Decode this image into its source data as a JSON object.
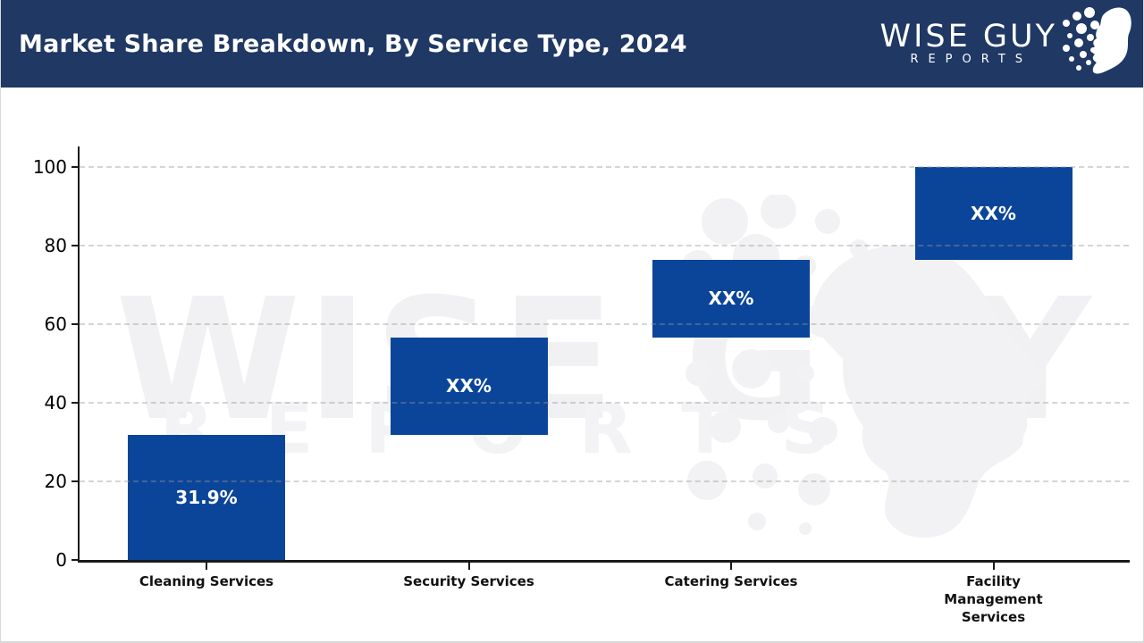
{
  "header": {
    "title": "Market Share Breakdown, By Service Type, 2024",
    "logo": {
      "line1": "WISE GUY",
      "line2": "REPORTS"
    }
  },
  "watermark": {
    "line1": "WISE GUY",
    "line2": "REPORTS"
  },
  "chart_data": {
    "type": "bar",
    "subtype": "waterfall",
    "title": "Market Share Breakdown, By Service Type, 2024",
    "categories": [
      "Cleaning Services",
      "Security Services",
      "Catering Services",
      "Facility Management Services"
    ],
    "segments": [
      {
        "category": "Cleaning Services",
        "start": 0,
        "end": 31.9,
        "label": "31.9%"
      },
      {
        "category": "Security Services",
        "start": 31.9,
        "end": 56.6,
        "label": "XX%"
      },
      {
        "category": "Catering Services",
        "start": 56.6,
        "end": 76.4,
        "label": "XX%"
      },
      {
        "category": "Facility Management Services",
        "start": 76.4,
        "end": 100,
        "label": "XX%"
      }
    ],
    "xlabel": "",
    "ylabel": "",
    "ylim": [
      0,
      100
    ],
    "yticks": [
      0,
      20,
      40,
      60,
      80,
      100
    ],
    "grid": "dashed-horizontal",
    "legend": "none",
    "bar_color": "#0B4599",
    "bar_label_color": "#ffffff"
  },
  "colors": {
    "header_bg": "#1F3864",
    "background": "#ffffff",
    "axis": "#1a1a1a",
    "gridline": "#d9d9d9",
    "watermark": "#f1f1f3"
  }
}
